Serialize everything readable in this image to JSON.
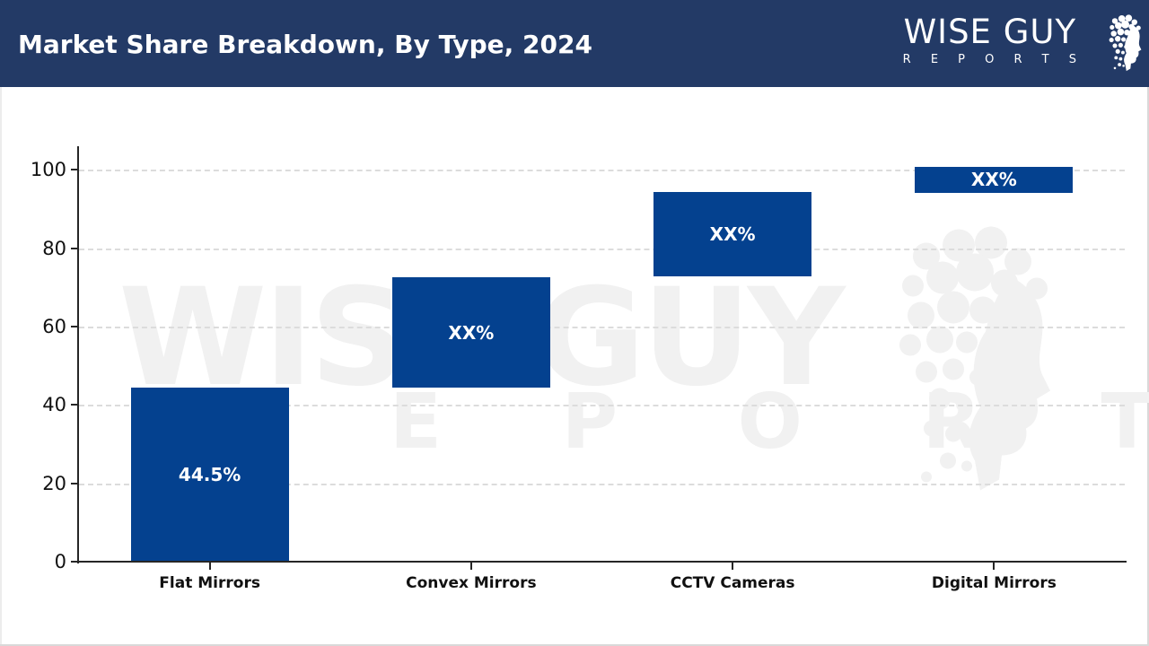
{
  "header": {
    "title": "Market Share Breakdown, By Type, 2024",
    "bg_color": "#233a66",
    "logo": {
      "name": "WISE GUY",
      "sub": "R E P O R T S"
    }
  },
  "watermark": {
    "line1": "WISE GUY",
    "line2": "R E P O R T S"
  },
  "chart_data": {
    "type": "bar",
    "subtype": "waterfall",
    "title": "Market Share Breakdown, By Type, 2024",
    "categories": [
      "Flat Mirrors",
      "Convex Mirrors",
      "CCTV Cameras",
      "Digital Mirrors"
    ],
    "series": [
      {
        "name": "Market Share (%)",
        "segments": [
          {
            "category": "Flat Mirrors",
            "start": 0,
            "end": 44.5,
            "value_label": "44.5%"
          },
          {
            "category": "Convex Mirrors",
            "start": 44.3,
            "end": 72.6,
            "value_label": "XX%"
          },
          {
            "category": "CCTV Cameras",
            "start": 72.9,
            "end": 94.4,
            "value_label": "XX%"
          },
          {
            "category": "Digital Mirrors",
            "start": 94.2,
            "end": 100.8,
            "value_label": "XX%"
          }
        ]
      }
    ],
    "xlabel": "",
    "ylabel": "",
    "yticks": [
      0,
      20,
      40,
      60,
      80,
      100
    ],
    "ylim": [
      0,
      106
    ],
    "grid": "horizontal-dashed",
    "legend": "none",
    "bar_color": "#04418f",
    "bar_label_color": "#ffffff"
  }
}
